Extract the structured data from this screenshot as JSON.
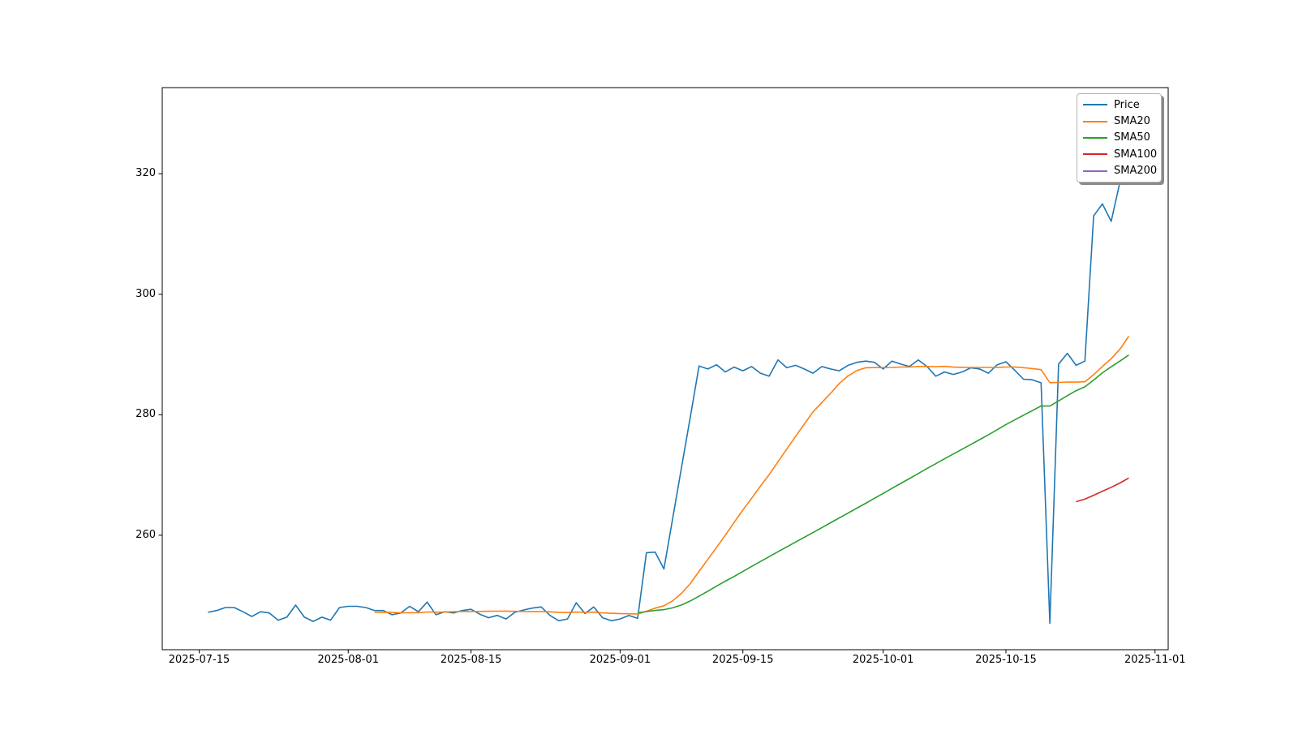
{
  "chart_data": {
    "type": "line",
    "title": "",
    "xlabel": "",
    "ylabel": "",
    "grid": false,
    "background_color": "#ffffff",
    "x_tick_labels": [
      "2025-07-15",
      "2025-08-01",
      "2025-08-15",
      "2025-09-01",
      "2025-09-15",
      "2025-10-01",
      "2025-10-15",
      "2025-11-01"
    ],
    "y_tick_labels": [
      "260",
      "280",
      "300",
      "320"
    ],
    "y_tick_values": [
      260,
      280,
      300,
      320
    ],
    "xlim": [
      "2025-07-10T19:00:00Z",
      "2025-11-02T12:00:00Z"
    ],
    "ylim": [
      241.0,
      334.3
    ],
    "legend": {
      "position": "upper right",
      "entries": [
        {
          "label": "Price",
          "color": "#1f77b4"
        },
        {
          "label": "SMA20",
          "color": "#ff7f0e"
        },
        {
          "label": "SMA50",
          "color": "#2ca02c"
        },
        {
          "label": "SMA100",
          "color": "#d62728"
        },
        {
          "label": "SMA200",
          "color": "#9467bd"
        }
      ]
    },
    "series": [
      {
        "name": "Price",
        "kind": "price",
        "color": "#1f77b4",
        "start_date": "2025-07-16",
        "frequency": "daily",
        "values": [
          247.2,
          247.5,
          248.0,
          248.0,
          247.3,
          246.5,
          247.3,
          247.1,
          245.9,
          246.4,
          248.4,
          246.4,
          245.7,
          246.4,
          245.9,
          248.0,
          248.2,
          248.2,
          248.0,
          247.5,
          247.5,
          246.8,
          247.1,
          248.2,
          247.3,
          248.9,
          246.8,
          247.3,
          247.1,
          247.5,
          247.7,
          246.9,
          246.3,
          246.7,
          246.1,
          247.2,
          247.6,
          247.9,
          248.1,
          246.7,
          245.8,
          246.1,
          248.8,
          247.0,
          248.1,
          246.3,
          245.8,
          246.1,
          246.7,
          246.2,
          257.1,
          257.2,
          254.4,
          262.8,
          271.2,
          279.6,
          288.1,
          287.6,
          288.3,
          287.1,
          287.9,
          287.3,
          288.0,
          286.9,
          286.4,
          289.1,
          287.8,
          288.2,
          287.6,
          286.9,
          288.0,
          287.6,
          287.3,
          288.2,
          288.7,
          288.9,
          288.7,
          287.6,
          288.9,
          288.4,
          288.0,
          289.1,
          288.0,
          286.4,
          287.1,
          286.7,
          287.1,
          287.8,
          287.6,
          286.9,
          288.3,
          288.8,
          287.4,
          285.9,
          285.8,
          285.3,
          245.4,
          288.4,
          290.2,
          288.2,
          288.9,
          313.0,
          315.0,
          312.1,
          318.6,
          330.0
        ]
      },
      {
        "name": "SMA20",
        "kind": "sma",
        "window": 20,
        "color": "#ff7f0e"
      },
      {
        "name": "SMA50",
        "kind": "sma",
        "window": 50,
        "color": "#2ca02c"
      },
      {
        "name": "SMA100",
        "kind": "sma",
        "window": 100,
        "color": "#d62728"
      },
      {
        "name": "SMA200",
        "kind": "sma",
        "window": 200,
        "color": "#9467bd"
      }
    ],
    "axes": {
      "frame_color": "#000000",
      "tick_color": "#000000",
      "line_width": 1.6
    }
  }
}
